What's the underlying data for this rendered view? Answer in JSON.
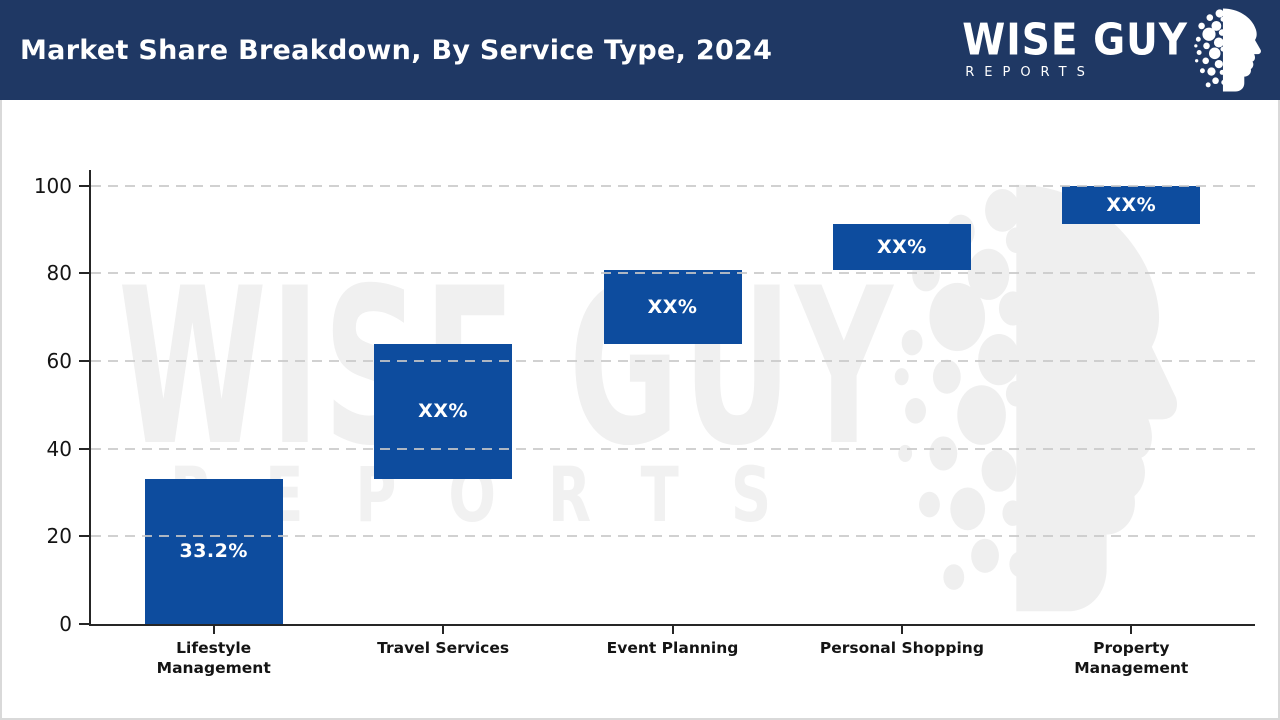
{
  "header": {
    "title": "Market Share Breakdown, By Service Type, 2024",
    "bg_color": "#1f3864",
    "logo": {
      "wordmark": "WISE GUY",
      "subtitle": "REPORTS"
    }
  },
  "watermark": {
    "wordmark": "WISE GUY",
    "subtitle": "REPORTS"
  },
  "chart_data": {
    "type": "bar",
    "subtype": "waterfall",
    "title": "Market Share Breakdown, By Service Type, 2024",
    "categories": [
      "Lifestyle Management",
      "Travel Services",
      "Event Planning",
      "Personal Shopping",
      "Property Management"
    ],
    "segments": [
      {
        "category": "Lifestyle Management",
        "start": 0,
        "end": 33.2,
        "label": "33.2%"
      },
      {
        "category": "Travel Services",
        "start": 33.2,
        "end": 64.0,
        "label": "XX%"
      },
      {
        "category": "Event Planning",
        "start": 64.0,
        "end": 80.8,
        "label": "XX%"
      },
      {
        "category": "Personal Shopping",
        "start": 80.8,
        "end": 91.3,
        "label": "XX%"
      },
      {
        "category": "Property Management",
        "start": 91.3,
        "end": 100,
        "label": "XX%"
      }
    ],
    "yticks": [
      0,
      20,
      40,
      60,
      80,
      100
    ],
    "ylim": [
      0,
      103.6
    ],
    "xlabel": "",
    "ylabel": "",
    "grid": "horizontal-dashed",
    "legend": "none",
    "bar_color": "#0d4c9e",
    "value_label_color": "#ffffff"
  }
}
